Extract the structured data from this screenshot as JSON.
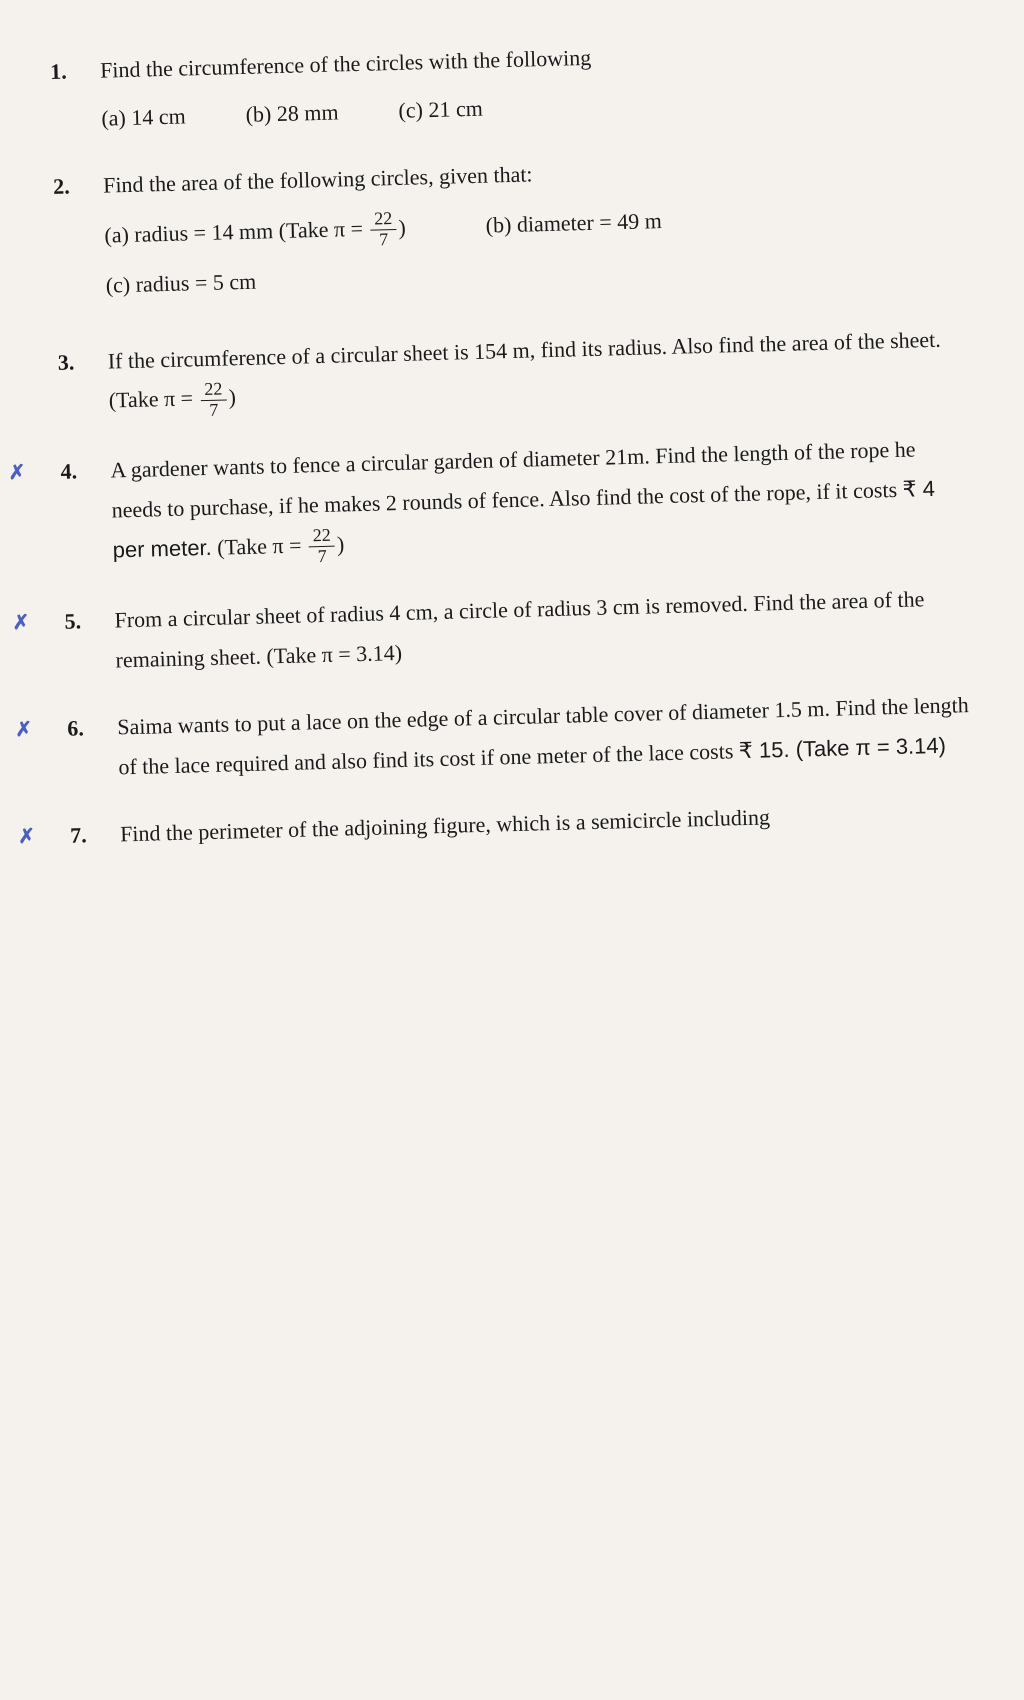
{
  "page": {
    "background_color": "#f5f2ed",
    "text_color": "#1a1a1a",
    "annotation_color": "#4a5fc9",
    "font_family": "Georgia, Times New Roman, serif",
    "body_fontsize": 22,
    "rotation_deg": -1.5
  },
  "q1": {
    "num": "1.",
    "text": "Find the circumference of the circles with the following",
    "opts": {
      "a": "(a) 14 cm",
      "b": "(b) 28 mm",
      "c": "(c) 21 cm"
    }
  },
  "q2": {
    "num": "2.",
    "text": "Find the area of the following circles, given that:",
    "sub": {
      "a_label": "(a) radius = 14 mm (Take π = ",
      "a_close": ")",
      "b": "(b) diameter = 49 m",
      "c": "(c) radius = 5 cm"
    }
  },
  "q3": {
    "num": "3.",
    "text_part1": "If the circumference of a circular sheet is 154 m, find its radius. Also find the area of",
    "text_part2": "the sheet. (Take π = ",
    "text_close": ")"
  },
  "q4": {
    "num": "4.",
    "star": "✗",
    "text_part1": "A gardener wants to fence a circular garden of diameter 21m. Find the length of the rope he needs to purchase, if he makes 2 rounds of fence. Also find the cost of the rope, if it costs ",
    "cost": "₹ 4 per meter.",
    "take": " (Take π = ",
    "close": ")"
  },
  "q5": {
    "num": "5.",
    "star": "✗",
    "text": "From a circular sheet of radius 4 cm, a circle of radius 3 cm is removed. Find the area of the remaining sheet. (Take π = 3.14)"
  },
  "q6": {
    "num": "6.",
    "star": "✗",
    "text_part1": "Saima wants to put a lace on the edge of a circular table cover of diameter 1.5 m. Find the length of the lace required and also find its cost if one meter of the lace costs",
    "cost": "₹ 15. (Take π = 3.14)"
  },
  "q7": {
    "num": "7.",
    "star": "✗",
    "text": "Find the perimeter of the adjoining figure, which is a semicircle including"
  },
  "fraction": {
    "num": "22",
    "den": "7"
  }
}
